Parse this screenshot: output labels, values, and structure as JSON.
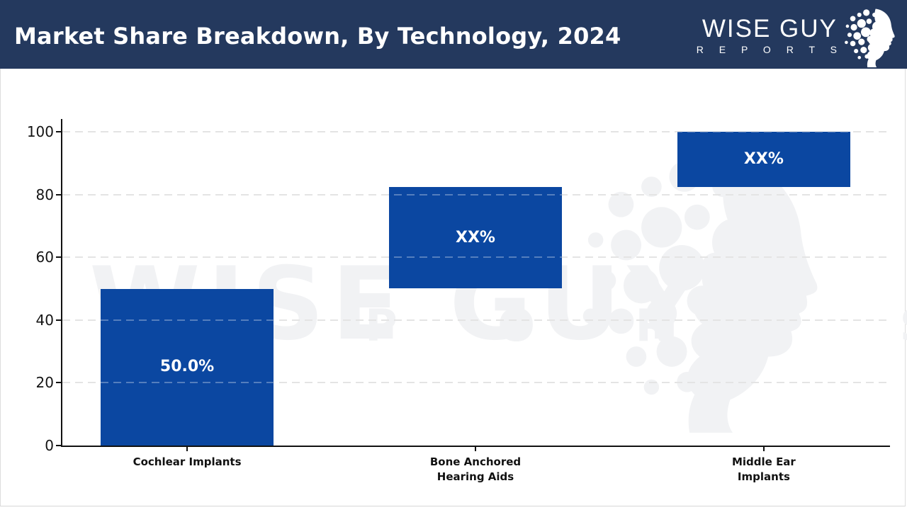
{
  "header": {
    "title": "Market Share Breakdown, By Technology, 2024",
    "logo": {
      "wordmark": "WISE GUY",
      "subtext": "R E P O R T S"
    },
    "colors": {
      "background": "#24395E",
      "text": "#FFFFFF"
    }
  },
  "watermark": {
    "line1": "WISE GUY",
    "line2": "R E P O R T S"
  },
  "chart_data": {
    "type": "bar",
    "subtype": "waterfall",
    "title": "Market Share Breakdown, By Technology, 2024",
    "categories": [
      "Cochlear Implants",
      "Bone Anchored Hearing Aids",
      "Middle Ear Implants"
    ],
    "category_lines": [
      [
        "Cochlear Implants"
      ],
      [
        "Bone Anchored",
        "Hearing Aids"
      ],
      [
        "Middle Ear",
        "Implants"
      ]
    ],
    "bars": [
      {
        "category": "Cochlear Implants",
        "start": 0,
        "end": 50,
        "value": 50.0,
        "label": "50.0%"
      },
      {
        "category": "Bone Anchored Hearing Aids",
        "start": 50,
        "end": 82.5,
        "value": 32.5,
        "label": "XX%"
      },
      {
        "category": "Middle Ear Implants",
        "start": 82.5,
        "end": 100,
        "value": 17.5,
        "label": "XX%"
      }
    ],
    "xlabel": "",
    "ylabel": "",
    "ylim": [
      0,
      100
    ],
    "yticks": [
      0,
      20,
      40,
      60,
      80,
      100
    ],
    "grid": {
      "horizontal": true,
      "style": "dashed"
    },
    "legend": "none",
    "colors": {
      "bar": "#0B47A1",
      "bar_label": "#FFFFFF",
      "axis": "#111111",
      "tick_label": "#141414",
      "gridline": "#D8D8D8",
      "watermark": "#F1F2F4"
    }
  }
}
